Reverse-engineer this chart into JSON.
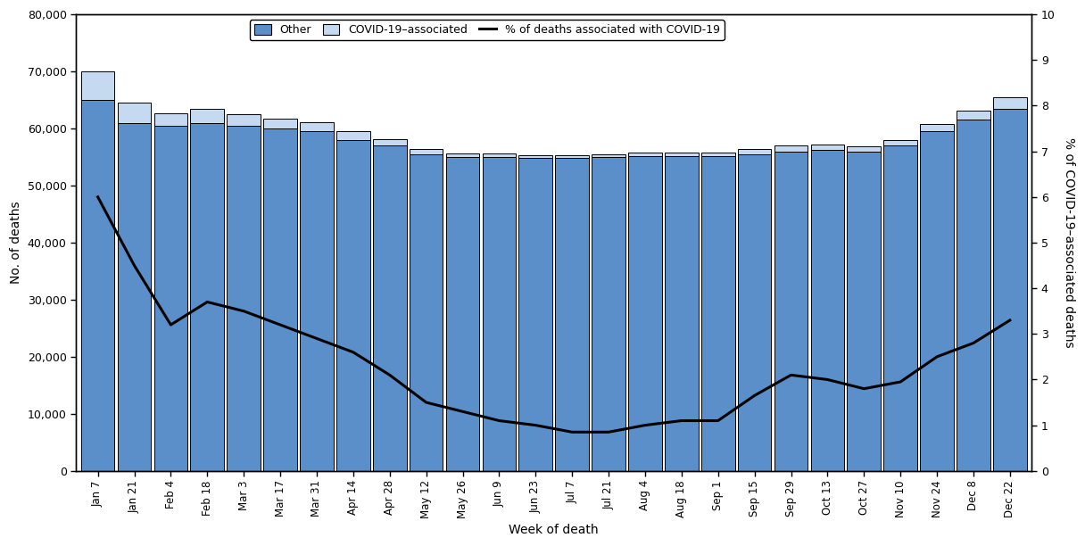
{
  "weeks": [
    "Jan 7",
    "Jan 21",
    "Feb 4",
    "Feb 18",
    "Mar 3",
    "Mar 17",
    "Mar 31",
    "Apr 14",
    "Apr 28",
    "May 12",
    "May 26",
    "Jun 9",
    "Jun 23",
    "Jul 7",
    "Jul 21",
    "Aug 4",
    "Aug 18",
    "Sep 1",
    "Sep 15",
    "Sep 29",
    "Oct 13",
    "Oct 27",
    "Nov 10",
    "Nov 24",
    "Dec 8",
    "Dec 22"
  ],
  "other_deaths": [
    65000,
    61000,
    60500,
    61000,
    60500,
    60000,
    59500,
    58000,
    57000,
    55500,
    55000,
    55000,
    54800,
    54800,
    55000,
    55200,
    55200,
    55200,
    55500,
    56000,
    56200,
    56000,
    57000,
    59500,
    61500,
    63500
  ],
  "covid_deaths": [
    5000,
    3500,
    2200,
    2500,
    2000,
    1800,
    1600,
    1500,
    1200,
    900,
    700,
    600,
    550,
    500,
    500,
    550,
    550,
    600,
    900,
    1100,
    1000,
    900,
    1000,
    1300,
    1600,
    2000
  ],
  "pct_covid": [
    6.0,
    4.5,
    3.2,
    3.7,
    3.5,
    3.2,
    2.9,
    2.6,
    2.1,
    1.5,
    1.3,
    1.1,
    1.0,
    0.85,
    0.85,
    1.0,
    1.1,
    1.1,
    1.65,
    2.1,
    2.0,
    1.8,
    1.95,
    2.5,
    2.8,
    3.3
  ],
  "bar_color_other": "#5B8FC9",
  "bar_color_covid": "#C5D9F0",
  "line_color": "#000000",
  "ylim_left": [
    0,
    80000
  ],
  "ylim_right": [
    0,
    10
  ],
  "yticks_left": [
    0,
    10000,
    20000,
    30000,
    40000,
    50000,
    60000,
    70000,
    80000
  ],
  "yticks_right": [
    0,
    1,
    2,
    3,
    4,
    5,
    6,
    7,
    8,
    9,
    10
  ],
  "ylabel_left": "No. of deaths",
  "ylabel_right": "% of COVID-19–associated deaths",
  "xlabel": "Week of death",
  "legend_labels": [
    "Other",
    "COVID-19–associated",
    "% of deaths associated with COVID-19"
  ],
  "background_color": "#ffffff",
  "bar_edgecolor": "#000000",
  "bar_linewidth": 0.7,
  "line_linewidth": 2.2,
  "figsize": [
    12.16,
    6.12
  ],
  "dpi": 100
}
